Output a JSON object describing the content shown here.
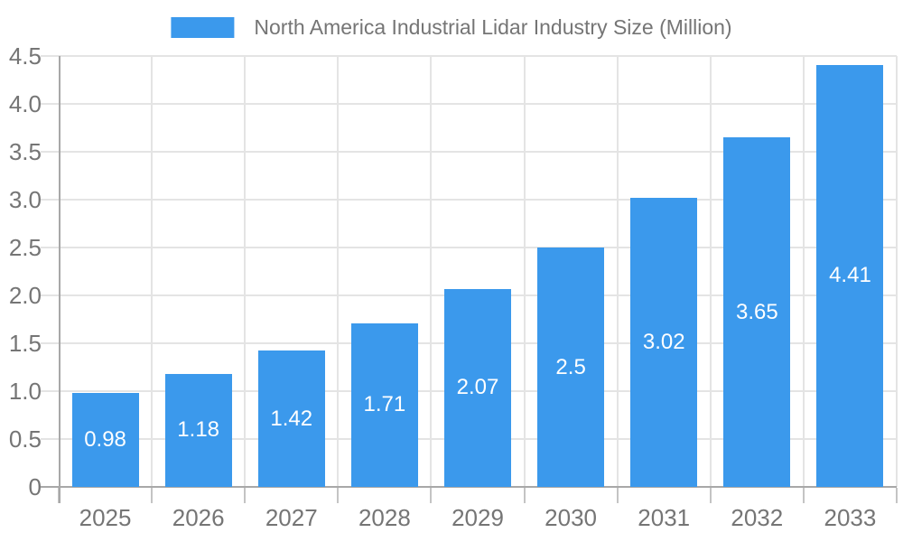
{
  "legend": {
    "label": "North America Industrial Lidar Industry Size (Million)"
  },
  "chart_data": {
    "type": "bar",
    "title": "North America Industrial Lidar Industry Size (Million)",
    "series_name": "North America Industrial Lidar Industry Size (Million)",
    "categories": [
      "2025",
      "2026",
      "2027",
      "2028",
      "2029",
      "2030",
      "2031",
      "2032",
      "2033"
    ],
    "values": [
      0.98,
      1.18,
      1.42,
      1.71,
      2.07,
      2.5,
      3.02,
      3.65,
      4.41
    ],
    "value_labels": [
      "0.98",
      "1.18",
      "1.42",
      "1.71",
      "2.07",
      "2.5",
      "3.02",
      "3.65",
      "4.41"
    ],
    "xlabel": "",
    "ylabel": "",
    "ylim": [
      0,
      4.5
    ],
    "ytick_step": 0.5,
    "yticks": [
      "0",
      "0.5",
      "1.0",
      "1.5",
      "2.0",
      "2.5",
      "3.0",
      "3.5",
      "4.0",
      "4.5"
    ],
    "grid": true,
    "legend_position": "top-center"
  },
  "colors": {
    "bar": "#3b99ec",
    "text": "#757575",
    "grid_line": "#e4e4e4",
    "axis_line": "#a8a8a8",
    "tick": "#c4c4c4",
    "value_label": "#ffffff",
    "background": "#ffffff"
  }
}
